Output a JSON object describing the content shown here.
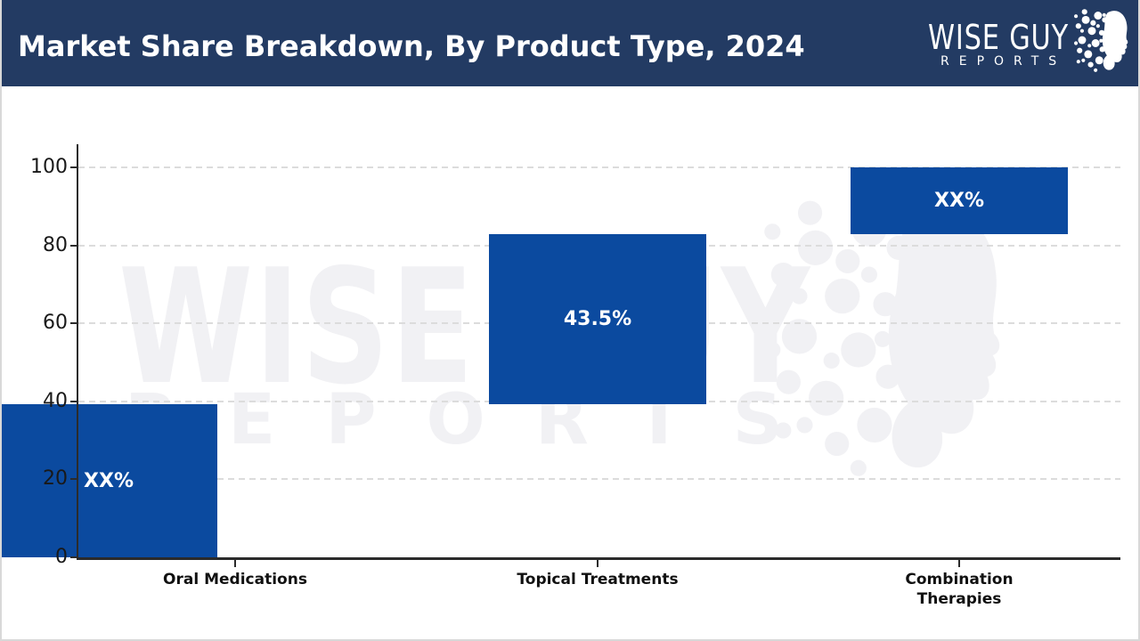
{
  "header": {
    "title": "Market Share Breakdown, By Product Type, 2024",
    "logo": {
      "brand": "WISE GUY",
      "brand_sub": "REPORTS"
    }
  },
  "watermark": {
    "brand": "WISE GUY",
    "brand_sub": "REPORTS"
  },
  "colors": {
    "header_bg": "#233b63",
    "bar_blue": "#0b4a9f",
    "grid_line": "#dcdcdc",
    "axis": "#2b2b2b"
  },
  "chart_data": {
    "type": "bar",
    "variant": "waterfall",
    "title": "Market Share Breakdown, By Product Type, 2024",
    "categories": [
      "Oral Medications",
      "Topical Treatments",
      "Combination Therapies"
    ],
    "segments": [
      {
        "category": "Oral Medications",
        "start": 0,
        "end": 39.2,
        "label": "XX%"
      },
      {
        "category": "Topical Treatments",
        "start": 39.2,
        "end": 82.8,
        "label": "43.5%"
      },
      {
        "category": "Combination Therapies",
        "start": 82.8,
        "end": 100,
        "label": "XX%"
      }
    ],
    "xlabel": "",
    "ylabel": "",
    "ylim": [
      0,
      100
    ],
    "yticks": [
      0,
      20,
      40,
      60,
      80,
      100
    ],
    "grid": "horizontal-dashed",
    "legend": "none",
    "bar_color": "#0b4a9f"
  }
}
